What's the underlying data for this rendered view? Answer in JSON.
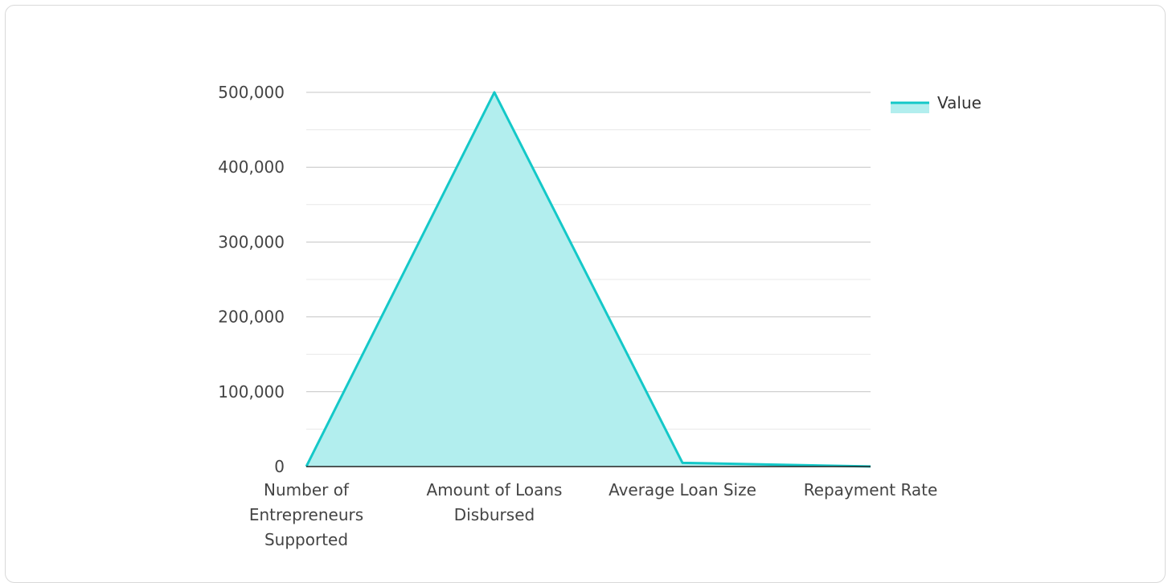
{
  "chart_data": {
    "type": "area",
    "categories": [
      "Number of Entrepreneurs Supported",
      "Amount of Loans Disbursed",
      "Average Loan Size",
      "Repayment Rate"
    ],
    "category_lines": [
      [
        "Number of",
        "Entrepreneurs",
        "Supported"
      ],
      [
        "Amount of Loans",
        "Disbursed"
      ],
      [
        "Average Loan Size"
      ],
      [
        "Repayment Rate"
      ]
    ],
    "series": [
      {
        "name": "Value",
        "values": [
          100,
          500000,
          5000,
          95
        ]
      }
    ],
    "ylim": [
      0,
      500000
    ],
    "yticks": [
      0,
      100000,
      200000,
      300000,
      400000,
      500000
    ],
    "ytick_labels": [
      "0",
      "100,000",
      "200,000",
      "300,000",
      "400,000",
      "500,000"
    ],
    "grid": true,
    "legend_position": "top-right",
    "colors": {
      "line": "#14c8c8",
      "fill": "#b2eeee",
      "grid_major": "#c4c4c4",
      "grid_minor": "#e8e8e8",
      "axis": "#222222"
    }
  }
}
